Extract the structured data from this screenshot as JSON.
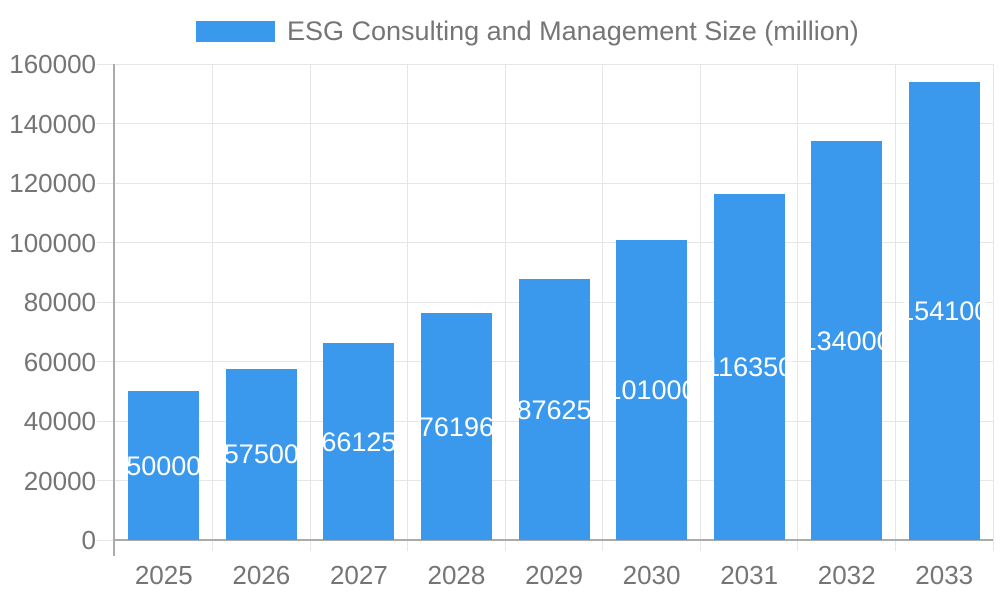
{
  "chart_data": {
    "type": "bar",
    "title": "ESG Consulting and Management Size (million)",
    "categories": [
      "2025",
      "2026",
      "2027",
      "2028",
      "2029",
      "2030",
      "2031",
      "2032",
      "2033"
    ],
    "series": [
      {
        "name": "ESG Consulting and Management Size (million)",
        "values": [
          50000,
          57500,
          66125,
          76196,
          87625,
          101000,
          116350,
          134000,
          154100
        ]
      }
    ],
    "data_labels": [
      "50000",
      "57500",
      "66125",
      "76196",
      "87625",
      "101000",
      "116350",
      "134000",
      "154100"
    ],
    "xlabel": "",
    "ylabel": "",
    "ylim": [
      0,
      160000
    ],
    "ytick_step": 20000,
    "ytick_labels": [
      "0",
      "20000",
      "40000",
      "60000",
      "80000",
      "100000",
      "120000",
      "140000",
      "160000"
    ],
    "grid": "horizontal and vertical",
    "legend_position": "top",
    "colors": {
      "bar": "#3A99EC",
      "bar_label_text": "#ffffff",
      "axis_text": "#757575",
      "gridline": "#e6e6e6",
      "axis_line": "#ababab",
      "background": "#ffffff"
    }
  }
}
